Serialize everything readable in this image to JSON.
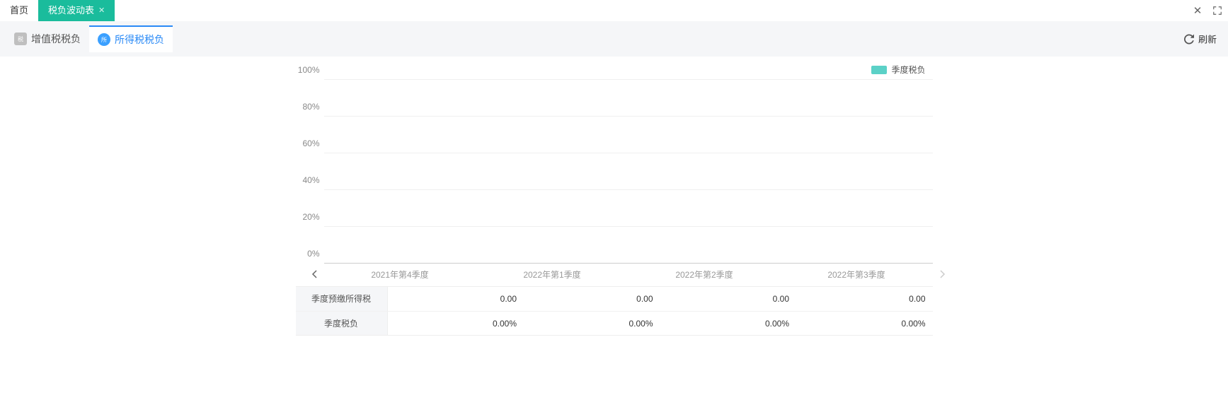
{
  "topTabs": {
    "home": "首页",
    "active": "税负波动表"
  },
  "subTabs": {
    "vat": "增值税税负",
    "income": "所得税税负"
  },
  "refresh": "刷新",
  "chart": {
    "type": "bar",
    "legendLabel": "季度税负",
    "legendColor": "#5bd1c7",
    "background_color": "#ffffff",
    "grid_color": "#f0f0f0",
    "axis_color": "#cccccc",
    "ylim": [
      0,
      100
    ],
    "ytick_step": 20,
    "y_unit": "%",
    "yTicks": [
      "0%",
      "20%",
      "40%",
      "60%",
      "80%",
      "100%"
    ],
    "xCategories": [
      "2021年第4季度",
      "2022年第1季度",
      "2022年第2季度",
      "2022年第3季度"
    ],
    "series": {
      "values": [
        0,
        0,
        0,
        0
      ],
      "color": "#5bd1c7"
    },
    "label_fontsize": 12,
    "label_color": "#888888"
  },
  "table": {
    "rows": [
      {
        "head": "季度预缴所得税",
        "cells": [
          "0.00",
          "0.00",
          "0.00",
          "0.00"
        ]
      },
      {
        "head": "季度税负",
        "cells": [
          "0.00%",
          "0.00%",
          "0.00%",
          "0.00%"
        ]
      }
    ],
    "head_bg": "#f5f6f8",
    "border_color": "#eeeeee"
  }
}
